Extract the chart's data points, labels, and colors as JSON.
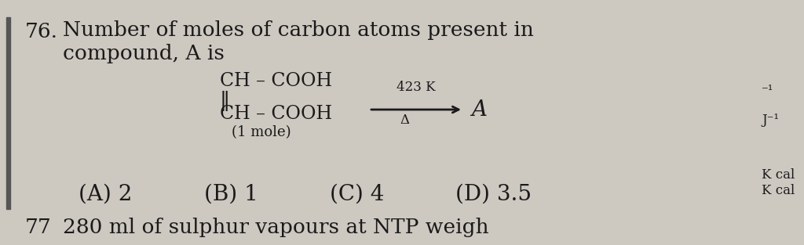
{
  "background_color": "#cdc8c0",
  "question_number": "76.",
  "question_text_line1": "Number of moles of carbon atoms present in",
  "question_text_line2": "compound, A is",
  "structure_line1": "CH – COOH",
  "structure_double_bond": "‖",
  "structure_line2": "CH – COOH",
  "structure_label": "(1 mole)",
  "arrow_label_top": "423 K",
  "arrow_label_bottom": "Δ",
  "arrow_target": "A",
  "options": [
    "(A) 2",
    "(B) 1",
    "(C) 4",
    "(D) 3.5"
  ],
  "right_label1": "⁻¹",
  "right_label2": "J⁻¹",
  "right_label3": "K cal",
  "right_label4": "K cal",
  "bottom_num": "77",
  "bottom_text": "280 ml of sulphur vapours at NTP weigh",
  "font_size_question": 19,
  "font_size_options": 20,
  "font_size_structure": 17,
  "font_size_small": 12,
  "text_color": "#1a1a1a",
  "left_bar_color": "#555555",
  "fig_width": 10.24,
  "fig_height": 3.13,
  "dpi": 100
}
